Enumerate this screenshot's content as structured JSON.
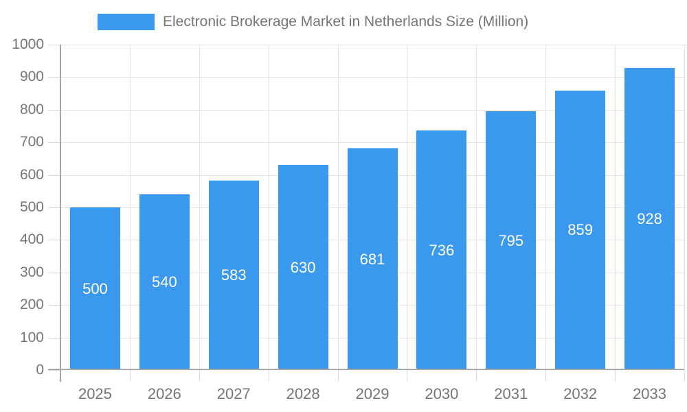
{
  "legend": {
    "label": "Electronic Brokerage Market in Netherlands Size (Million)",
    "swatch_color": "#3a99ec"
  },
  "chart_data": {
    "type": "bar",
    "title": "Electronic Brokerage Market in Netherlands Size (Million)",
    "series_name": "Electronic Brokerage Market in Netherlands Size (Million)",
    "categories": [
      "2025",
      "2026",
      "2027",
      "2028",
      "2029",
      "2030",
      "2031",
      "2032",
      "2033"
    ],
    "values": [
      500,
      540,
      583,
      630,
      681,
      736,
      795,
      859,
      928
    ],
    "value_labels": [
      "500",
      "540",
      "583",
      "630",
      "681",
      "736",
      "795",
      "859",
      "928"
    ],
    "xlabel": "",
    "ylabel": "",
    "ylim": [
      0,
      1000
    ],
    "ytick_step": 100,
    "yticks": [
      0,
      100,
      200,
      300,
      400,
      500,
      600,
      700,
      800,
      900,
      1000
    ],
    "grid": true,
    "legend_position": "top",
    "bar_color": "#3a99ec",
    "value_label_color": "#ffffff"
  },
  "colors": {
    "bar": "#3a99ec",
    "axis_line": "#a6a6a6",
    "gridline": "#e3e3e3",
    "tick": "#d9d9d9",
    "label_text": "#757575",
    "value_text": "#ffffff",
    "background": "#ffffff"
  }
}
